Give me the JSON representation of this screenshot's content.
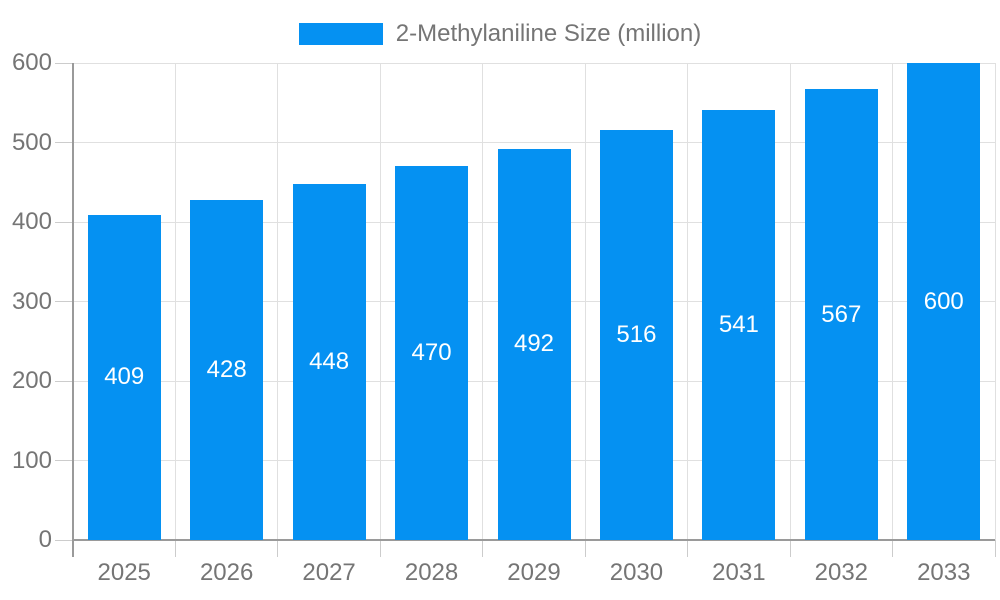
{
  "legend": {
    "position": "top-center",
    "items": [
      {
        "label": "2-Methylaniline Size (million)",
        "swatch_color": "#0591f2"
      }
    ]
  },
  "chart_data": {
    "type": "bar",
    "series_name": "2-Methylaniline Size (million)",
    "categories": [
      "2025",
      "2026",
      "2027",
      "2028",
      "2029",
      "2030",
      "2031",
      "2032",
      "2033"
    ],
    "values": [
      409,
      428,
      448,
      470,
      492,
      516,
      541,
      567,
      600
    ],
    "title": "2-Methylaniline Size (million)",
    "xlabel": "",
    "ylabel": "",
    "ylim": [
      0,
      600
    ],
    "yticks": [
      0,
      100,
      200,
      300,
      400,
      500,
      600
    ],
    "grid": true,
    "value_labels": "inside-center-white",
    "legend_position": "top-center",
    "colors": {
      "bar": "#0591f2",
      "bar_label": "#ffffff",
      "grid": "#e0e0e0",
      "tick": "#cccccc",
      "axis": "#9a9a9a",
      "text": "#757575",
      "background": "#ffffff"
    }
  }
}
